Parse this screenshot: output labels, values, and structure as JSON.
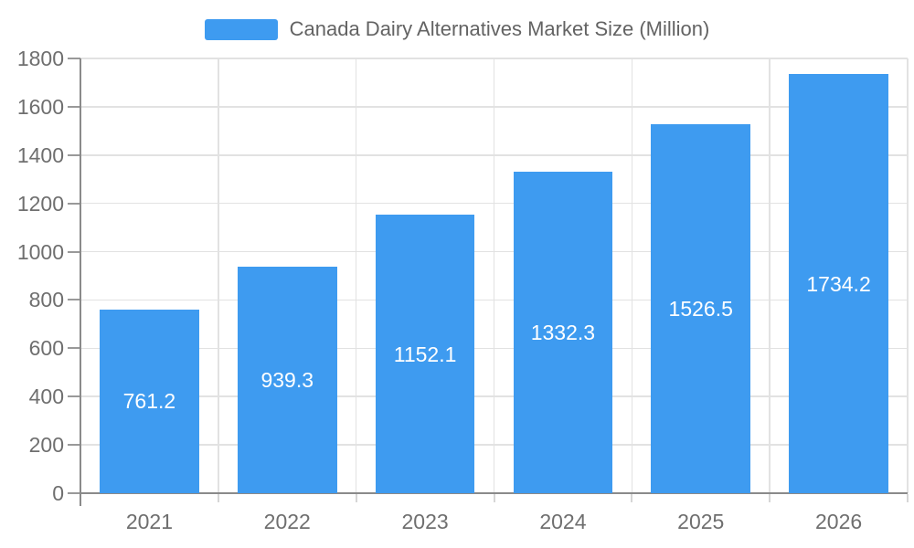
{
  "legend": {
    "label": "Canada Dairy Alternatives Market Size (Million)"
  },
  "colors": {
    "bar": "#3E9BF0",
    "grid": "#E2E2E2",
    "axis_line": "#8A8A8A",
    "y_tick": "#999999",
    "x_tick": "#D6D6D6",
    "axis_label": "#6F6F6F",
    "legend_text": "#636363",
    "value_label": "#FFFFFF",
    "background": "#FFFFFF"
  },
  "chart_data": {
    "type": "bar",
    "title": "Canada Dairy Alternatives Market Size (Million)",
    "series_name": "Canada Dairy Alternatives Market Size (Million)",
    "categories": [
      "2021",
      "2022",
      "2023",
      "2024",
      "2025",
      "2026"
    ],
    "values": [
      761.2,
      939.3,
      1152.1,
      1332.3,
      1526.5,
      1734.2
    ],
    "xlabel": "",
    "ylabel": "",
    "ylim": [
      0,
      1800
    ],
    "ytick_step": 200,
    "yticks": [
      0,
      200,
      400,
      600,
      800,
      1000,
      1200,
      1400,
      1600,
      1800
    ],
    "grid": true,
    "legend_position": "top-center",
    "value_labels": "inside-center",
    "value_label_decimals": 1
  }
}
